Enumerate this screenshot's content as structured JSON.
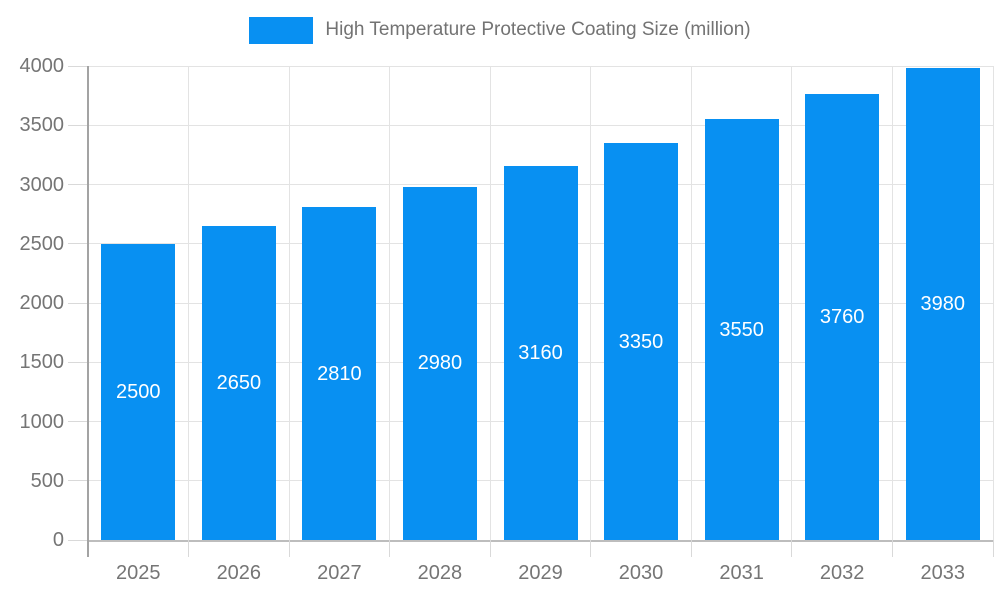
{
  "legend": {
    "label": "High Temperature Protective Coating Size (million)"
  },
  "chart_data": {
    "type": "bar",
    "title": "High Temperature Protective Coating Size (million)",
    "categories": [
      "2025",
      "2026",
      "2027",
      "2028",
      "2029",
      "2030",
      "2031",
      "2032",
      "2033"
    ],
    "values": [
      2500,
      2650,
      2810,
      2980,
      3160,
      3350,
      3550,
      3760,
      3980
    ],
    "xlabel": "",
    "ylabel": "",
    "ylim": [
      0,
      4000
    ],
    "ytick_step": 500,
    "grid": true,
    "legend_position": "top",
    "value_labels": "inside-center",
    "colors": {
      "bar": "#0890f2",
      "grid": "#e3e3e3",
      "axis_y": "#a3a3a3",
      "axis_x": "#bdbdbd",
      "tick": "#d9d9d9",
      "tick_text": "#757575",
      "legend_text": "#737373",
      "value_label": "#ffffff",
      "background": "#ffffff"
    }
  }
}
